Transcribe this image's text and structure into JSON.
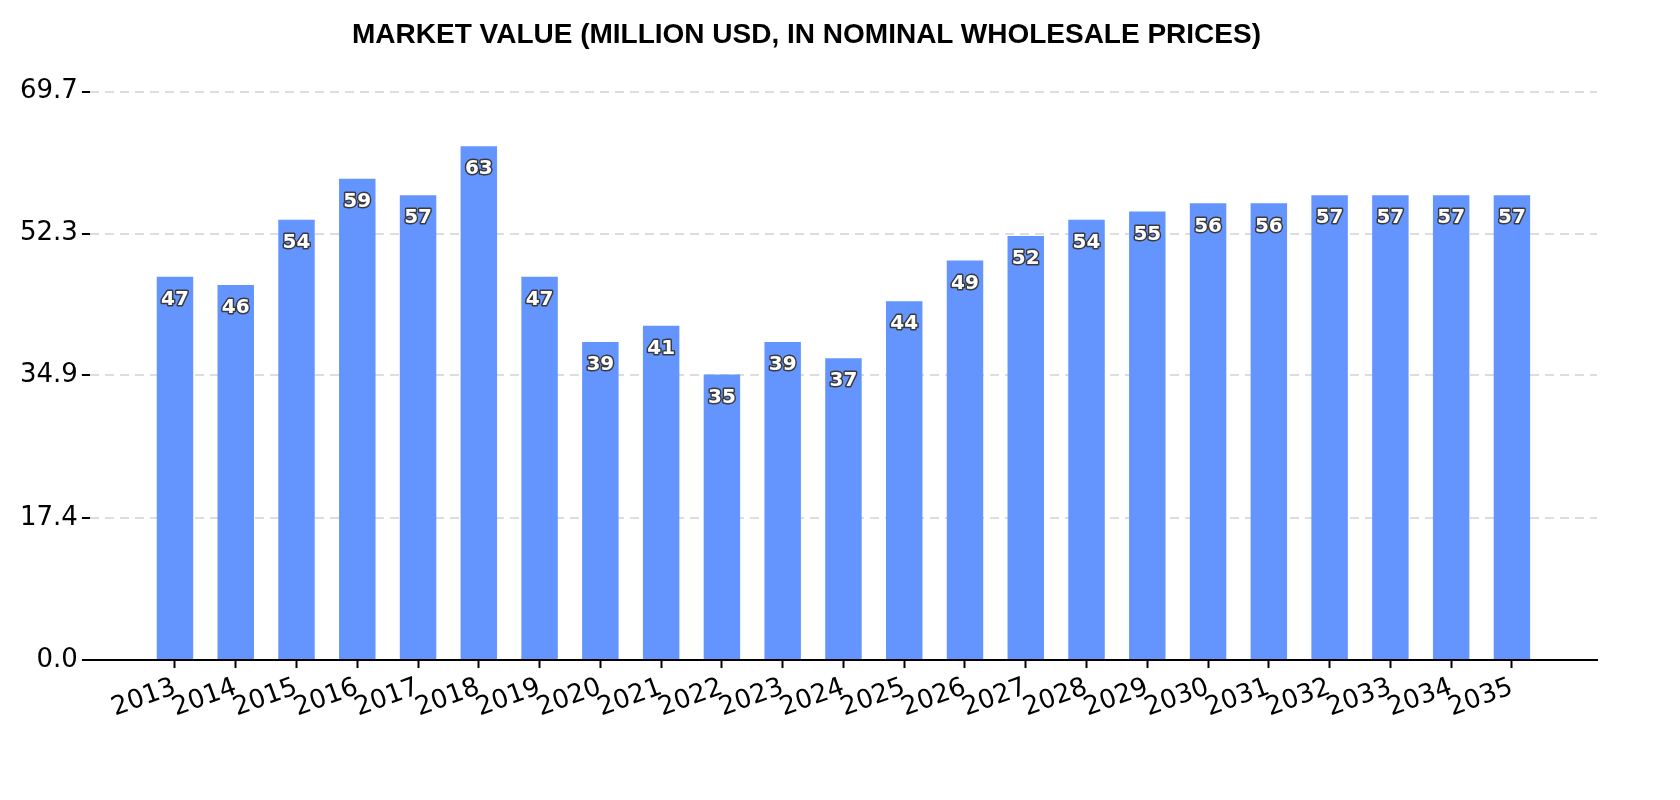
{
  "chart_data": {
    "type": "bar",
    "title": "MARKET VALUE (MILLION USD, IN NOMINAL WHOLESALE PRICES)",
    "categories": [
      "2013",
      "2014",
      "2015",
      "2016",
      "2017",
      "2018",
      "2019",
      "2020",
      "2021",
      "2022",
      "2023",
      "2024",
      "2025",
      "2026",
      "2027",
      "2028",
      "2029",
      "2030",
      "2031",
      "2032",
      "2033",
      "2034",
      "2035"
    ],
    "values": [
      47,
      46,
      54,
      59,
      57,
      63,
      47,
      39,
      41,
      35,
      39,
      37,
      44,
      49,
      52,
      54,
      55,
      56,
      56,
      57,
      57,
      57,
      57
    ],
    "color": "#6495ff",
    "ylim": [
      0,
      69.7
    ],
    "yticks": [
      {
        "value": 0,
        "label": "0.0"
      },
      17.4,
      34.9,
      52.3,
      69.7
    ],
    "grid": "y",
    "data_labels": true
  }
}
